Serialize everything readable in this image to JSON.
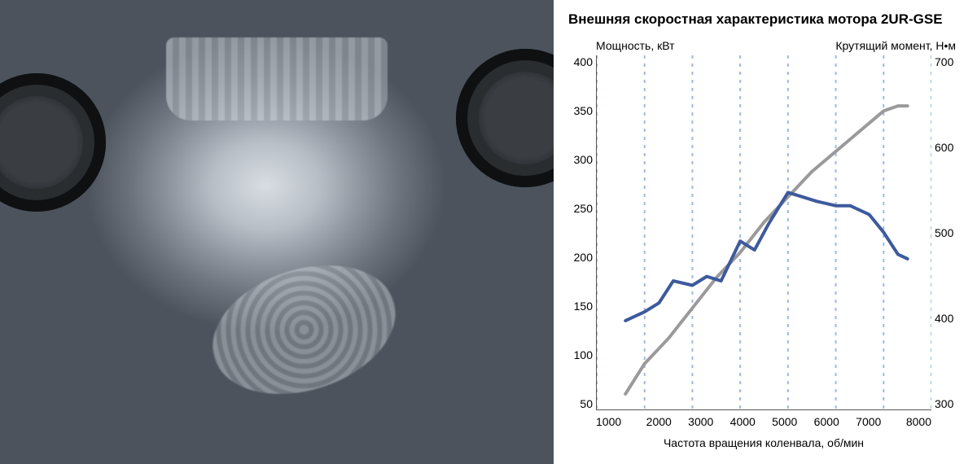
{
  "engine_image": {
    "alt": "Cutaway rendering of 2UR-GSE V8 engine and drivetrain",
    "note": "photographic render — approximated with CSS gradients"
  },
  "chart": {
    "type": "line-dual-axis",
    "title": "Внешняя скоростная характеристика мотора 2UR-GSE",
    "title_fontsize": 17,
    "xlabel": "Частота вращения коленвала, об/мин",
    "ylabel_left": "Мощность, кВт",
    "ylabel_right": "Крутящий момент, Н•м",
    "label_fontsize": 14,
    "tick_fontsize": 14,
    "background_color": "#ffffff",
    "grid_color": "#9fb9e8",
    "grid_dash": "4 6",
    "axis_color": "#555555",
    "x": {
      "min": 1000,
      "max": 8000,
      "ticks": [
        1000,
        2000,
        3000,
        4000,
        5000,
        6000,
        7000,
        8000
      ]
    },
    "y_left": {
      "min": 50,
      "max": 400,
      "ticks": [
        400,
        350,
        300,
        250,
        200,
        150,
        100,
        50
      ]
    },
    "y_right": {
      "min": 300,
      "max": 700,
      "ticks": [
        700,
        600,
        500,
        400,
        300
      ]
    },
    "series": {
      "power": {
        "axis": "left",
        "color": "#9a9a9a",
        "line_width": 4,
        "points": [
          [
            1600,
            65
          ],
          [
            2000,
            95
          ],
          [
            2500,
            120
          ],
          [
            3000,
            150
          ],
          [
            3500,
            180
          ],
          [
            4000,
            205
          ],
          [
            4500,
            235
          ],
          [
            5000,
            260
          ],
          [
            5500,
            285
          ],
          [
            6000,
            305
          ],
          [
            6500,
            325
          ],
          [
            7000,
            345
          ],
          [
            7300,
            350
          ],
          [
            7500,
            350
          ]
        ]
      },
      "torque": {
        "axis": "right",
        "color": "#3d5a9c",
        "line_width": 4,
        "points": [
          [
            1600,
            400
          ],
          [
            2000,
            410
          ],
          [
            2300,
            420
          ],
          [
            2600,
            445
          ],
          [
            3000,
            440
          ],
          [
            3300,
            450
          ],
          [
            3600,
            445
          ],
          [
            4000,
            490
          ],
          [
            4300,
            480
          ],
          [
            4600,
            510
          ],
          [
            5000,
            545
          ],
          [
            5300,
            540
          ],
          [
            5600,
            535
          ],
          [
            6000,
            530
          ],
          [
            6300,
            530
          ],
          [
            6700,
            520
          ],
          [
            7000,
            500
          ],
          [
            7300,
            475
          ],
          [
            7500,
            470
          ]
        ]
      }
    }
  }
}
